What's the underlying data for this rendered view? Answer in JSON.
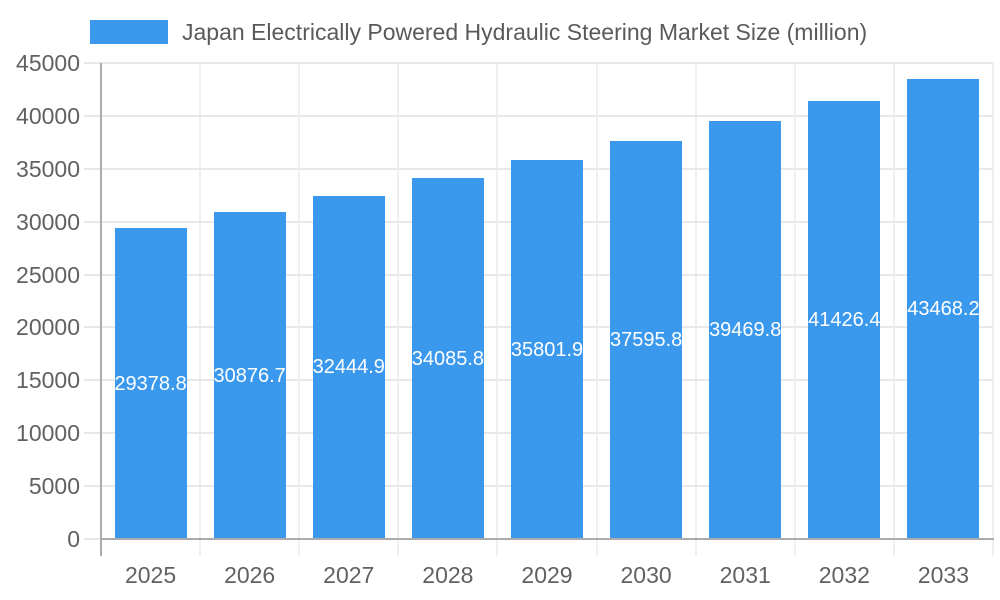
{
  "chart_data": {
    "type": "bar",
    "title": "Japan Electrically Powered Hydraulic Steering Market Size (million)",
    "categories": [
      "2025",
      "2026",
      "2027",
      "2028",
      "2029",
      "2030",
      "2031",
      "2032",
      "2033"
    ],
    "values": [
      29378.8,
      30876.7,
      32444.9,
      34085.8,
      35801.9,
      37595.8,
      39469.8,
      41426.4,
      43468.2
    ],
    "data_labels": [
      "29378.8",
      "30876.7",
      "32444.9",
      "34085.8",
      "35801.9",
      "37595.8",
      "39469.8",
      "41426.4",
      "43468.2"
    ],
    "xlabel": "",
    "ylabel": "",
    "ylim": [
      0,
      45000
    ],
    "yticks": [
      0,
      5000,
      10000,
      15000,
      20000,
      25000,
      30000,
      35000,
      40000,
      45000
    ],
    "grid": true,
    "legend_position": "top-left",
    "colors": {
      "bar": "#3A99EC",
      "grid_h": "#E8E8E8",
      "grid_v": "#EFEFEF",
      "axis": "#ABABAB",
      "tick_label": "#616161",
      "title_text": "#5A5A5A",
      "value_label": "#FFFFFF"
    }
  }
}
